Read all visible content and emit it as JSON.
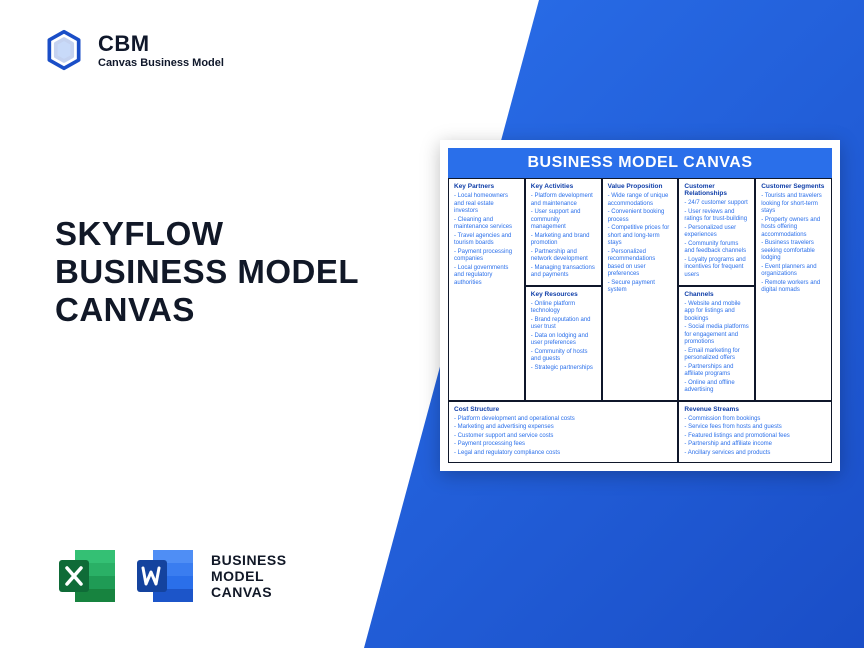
{
  "logo": {
    "abbr": "CBM",
    "sub": "Canvas Business Model"
  },
  "title": {
    "l1": "SKYFLOW",
    "l2": "BUSINESS MODEL",
    "l3": "CANVAS"
  },
  "apps_label": {
    "l1": "BUSINESS",
    "l2": "MODEL",
    "l3": "CANVAS"
  },
  "canvas": {
    "title": "BUSINESS MODEL CANVAS",
    "kp": {
      "hd": "Key Partners",
      "items": [
        "Local homeowners and real estate investors",
        "Cleaning and maintenance services",
        "Travel agencies and tourism boards",
        "Payment processing companies",
        "Local governments and regulatory authorities"
      ]
    },
    "ka": {
      "hd": "Key Activities",
      "items": [
        "Platform development and maintenance",
        "User support and community management",
        "Marketing and brand promotion",
        "Partnership and network development",
        "Managing transactions and payments"
      ]
    },
    "kr": {
      "hd": "Key Resources",
      "items": [
        "Online platform technology",
        "Brand reputation and user trust",
        "Data on lodging and user preferences",
        "Community of hosts and guests",
        "Strategic partnerships"
      ]
    },
    "vp": {
      "hd": "Value Proposition",
      "items": [
        "Wide range of unique accommodations",
        "Convenient booking process",
        "Competitive prices for short and long-term stays",
        "Personalized recommendations based on user preferences",
        "Secure payment system"
      ]
    },
    "cr": {
      "hd": "Customer Relationships",
      "items": [
        "24/7 customer support",
        "User reviews and ratings for trust-building",
        "Personalized user experiences",
        "Community forums and feedback channels",
        "Loyalty programs and incentives for frequent users"
      ]
    },
    "ch": {
      "hd": "Channels",
      "items": [
        "Website and mobile app for listings and bookings",
        "Social media platforms for engagement and promotions",
        "Email marketing for personalized offers",
        "Partnerships and affiliate programs",
        "Online and offline advertising"
      ]
    },
    "cs": {
      "hd": "Customer Segments",
      "items": [
        "Tourists and travelers looking for short-term stays",
        "Property owners and hosts offering accommodations",
        "Business travelers seeking comfortable lodging",
        "Event planners and organizations",
        "Remote workers and digital nomads"
      ]
    },
    "cost": {
      "hd": "Cost Structure",
      "items": [
        "Platform development and operational costs",
        "Marketing and advertising expenses",
        "Customer support and service costs",
        "Payment processing fees",
        "Legal and regulatory compliance costs"
      ]
    },
    "rev": {
      "hd": "Revenue Streams",
      "items": [
        "Commission from bookings",
        "Service fees from hosts and guests",
        "Featured listings and promotional fees",
        "Partnership and affiliate income",
        "Ancillary services and products"
      ]
    }
  },
  "colors": {
    "accent": "#2a6fea",
    "text_dark": "#0f172a"
  }
}
